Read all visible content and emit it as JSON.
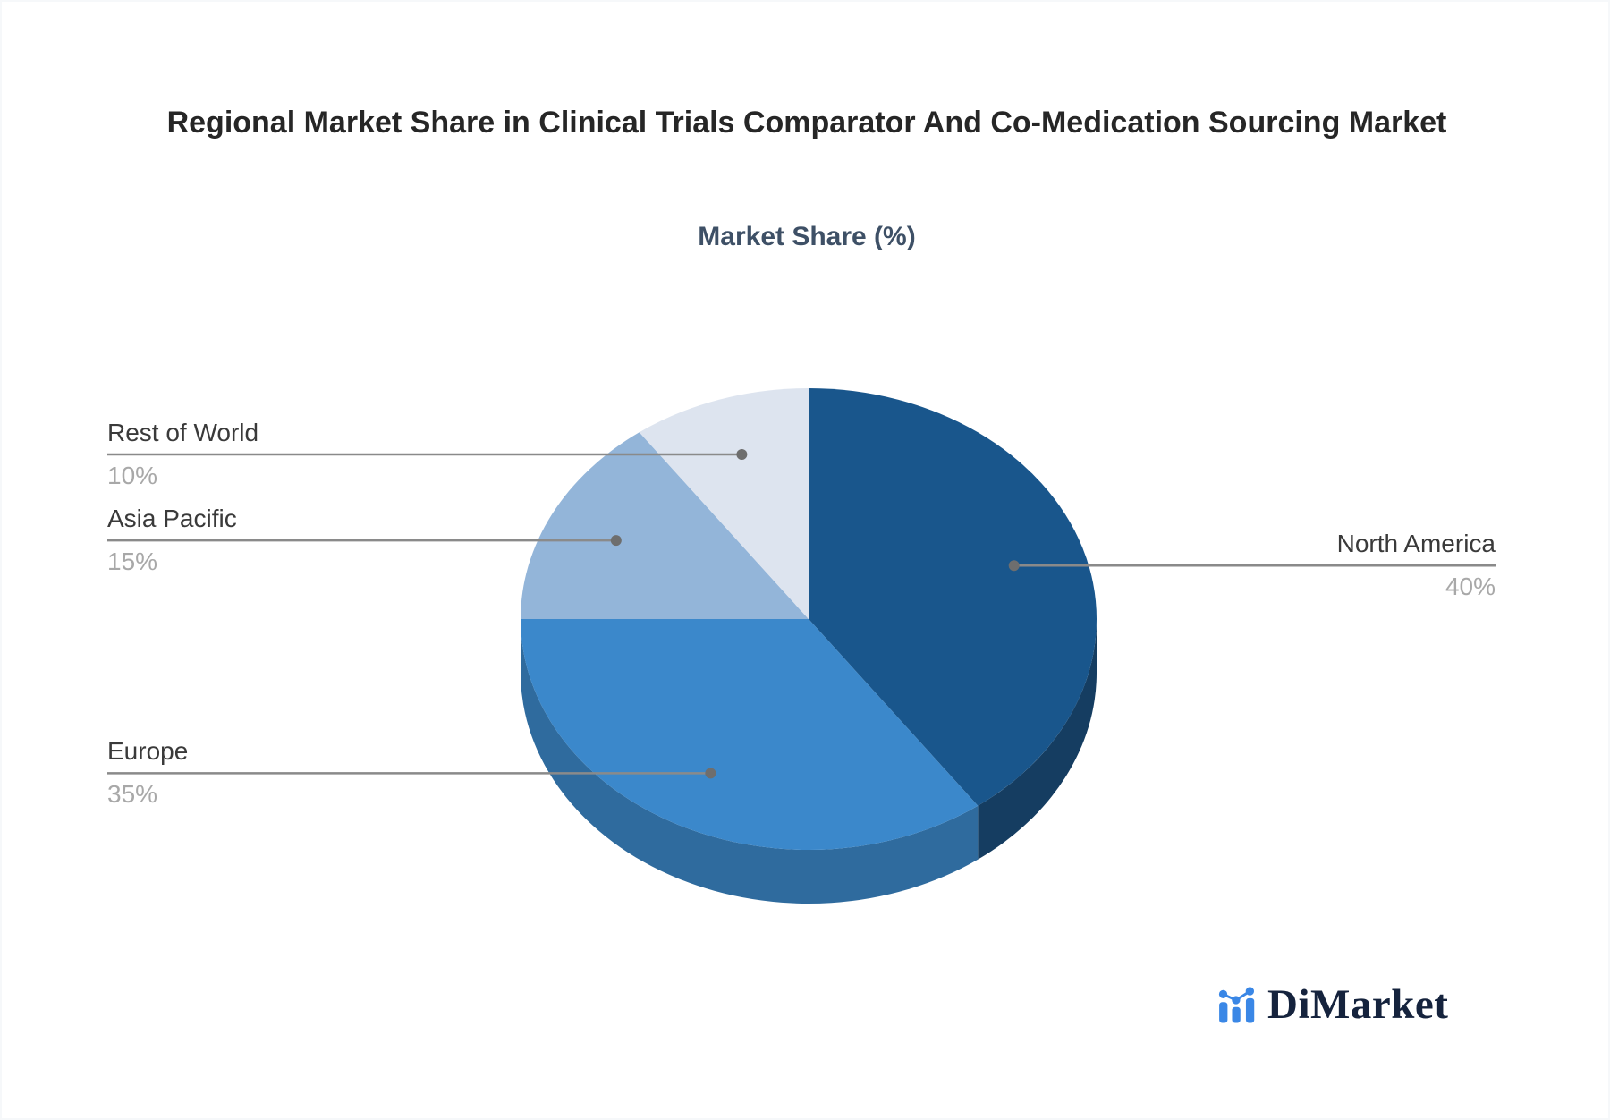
{
  "chart_data": {
    "type": "pie",
    "title": "Regional Market Share in Clinical Trials Comparator And Co-Medication Sourcing Market",
    "subtitle": "Market Share (%)",
    "unit": "%",
    "labels": [
      "North America",
      "Europe",
      "Asia Pacific",
      "Rest of World"
    ],
    "values": [
      40,
      35,
      15,
      10
    ],
    "display_values": [
      "40%",
      "35%",
      "15%",
      "10%"
    ],
    "colors": [
      "#19568c",
      "#3b88cb",
      "#93b5d9",
      "#dde4ef"
    ],
    "side_colors": [
      "#153d61",
      "#2f6b9e",
      "#74a2c8",
      "#b8c4d4"
    ],
    "start_angle_deg": 90,
    "direction": "clockwise",
    "style": "3d",
    "legend": "none",
    "label_style": "callout-lines",
    "callout_line_color": "#8a8a8a",
    "callout_dot_color": "#6e6e6e"
  },
  "brand": {
    "name": "DiMarket",
    "icon": "bar-chart-logo-icon",
    "icon_color": "#3a87e6",
    "text_color": "#15233d"
  }
}
